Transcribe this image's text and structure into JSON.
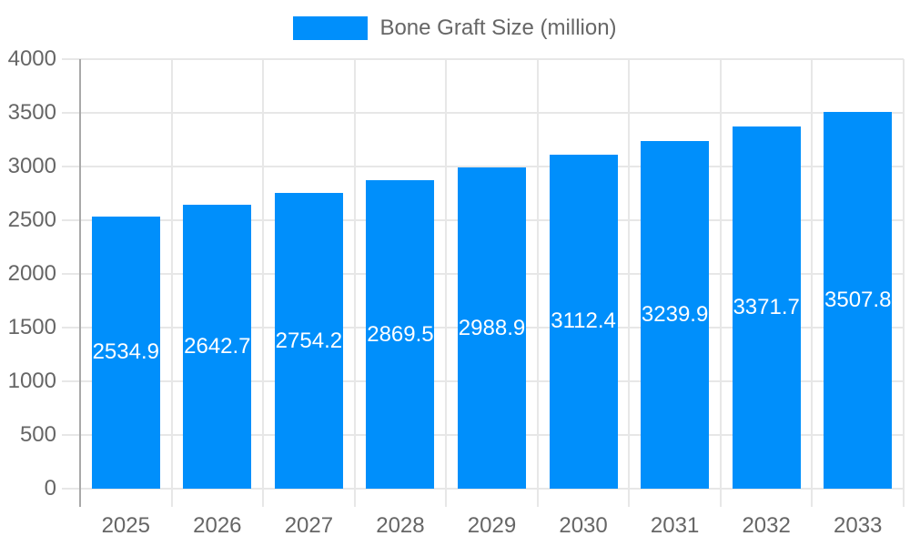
{
  "legend": {
    "label": "Bone Graft Size (million)"
  },
  "chart_data": {
    "type": "bar",
    "title": "Bone Graft Size (million)",
    "categories": [
      "2025",
      "2026",
      "2027",
      "2028",
      "2029",
      "2030",
      "2031",
      "2032",
      "2033"
    ],
    "series": [
      {
        "name": "Bone Graft Size (million)",
        "values": [
          2534.9,
          2642.7,
          2754.2,
          2869.5,
          2988.9,
          3112.4,
          3239.9,
          3371.7,
          3507.8
        ]
      }
    ],
    "value_labels": [
      "2534.9",
      "2642.7",
      "2754.2",
      "2869.5",
      "2988.9",
      "3112.4",
      "3239.9",
      "3371.7",
      "3507.8"
    ],
    "xlabel": "",
    "ylabel": "",
    "ylim": [
      0,
      4000
    ],
    "ytick_step": 500,
    "ytick_labels": [
      "0",
      "500",
      "1000",
      "1500",
      "2000",
      "2500",
      "3000",
      "3500",
      "4000"
    ],
    "grid": true,
    "legend_position": "top",
    "colors": {
      "bar": "#008FFB",
      "grid": "#e7e7e7",
      "axis_line": "#a9a9a9",
      "tick_label": "#666666",
      "value_label": "#ffffff",
      "legend_label": "#666666"
    }
  }
}
